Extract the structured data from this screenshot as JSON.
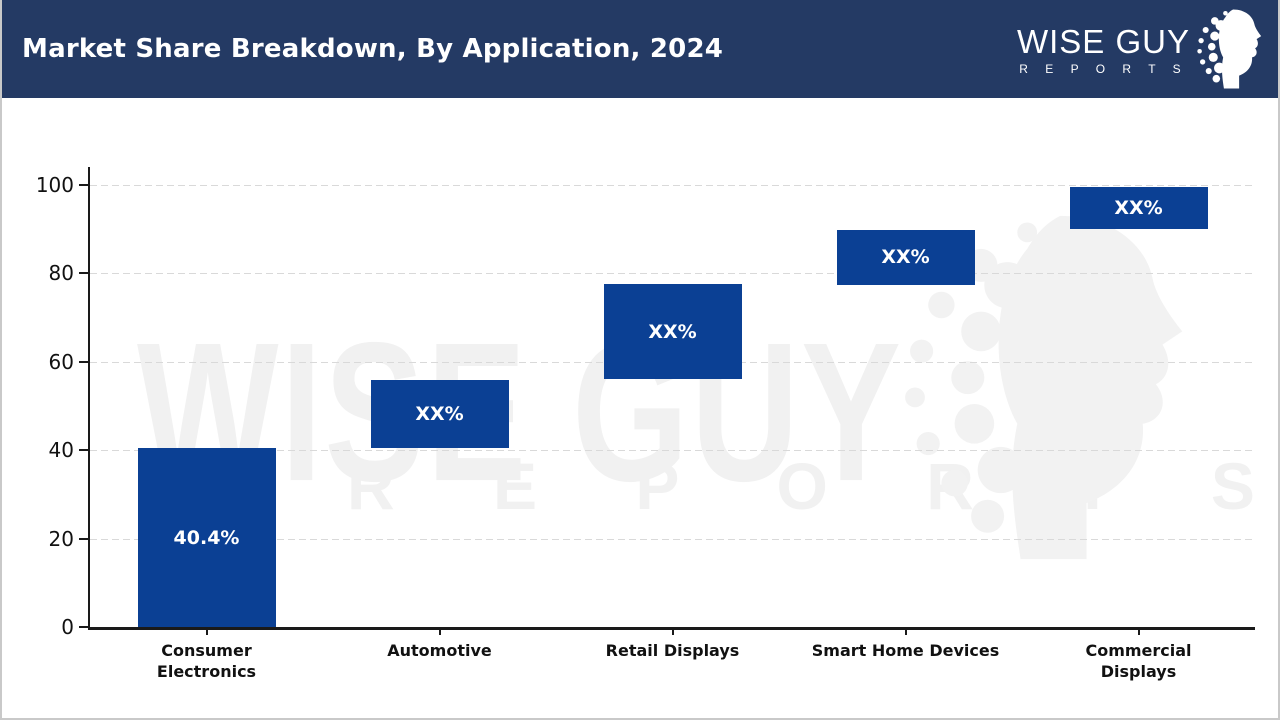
{
  "header": {
    "title": "Market Share Breakdown, By Application, 2024",
    "logo_text": "WISE GUY",
    "logo_subtext": "R E P O R T S"
  },
  "watermark": {
    "text": "WISE GUY",
    "subtext": "R E P O R T S",
    "head_icon": "dotted-face-profile"
  },
  "chart_data": {
    "type": "bar",
    "subtype": "floating_segment_waterfall",
    "title": "Market Share Breakdown, By Application, 2024",
    "categories": [
      "Consumer\nElectronics",
      "Automotive",
      "Retail Displays",
      "Smart Home Devices",
      "Commercial\nDisplays"
    ],
    "bars": [
      {
        "category": "Consumer Electronics",
        "start": 0,
        "end": 40.4,
        "label": "40.4%"
      },
      {
        "category": "Automotive",
        "start": 40.4,
        "end": 55.9,
        "label": "XX%"
      },
      {
        "category": "Retail Displays",
        "start": 56.0,
        "end": 77.6,
        "label": "XX%"
      },
      {
        "category": "Smart Home Devices",
        "start": 77.4,
        "end": 89.9,
        "label": "XX%"
      },
      {
        "category": "Commercial Displays",
        "start": 90.0,
        "end": 99.6,
        "label": "XX%"
      }
    ],
    "xlabel": "",
    "ylabel": "",
    "ylim": [
      0,
      100
    ],
    "yticks": [
      0,
      20,
      40,
      60,
      80,
      100
    ],
    "grid": "horizontal-dashed",
    "legend": "none",
    "colors": {
      "bar": "#0b4094",
      "bar_label": "#ffffff",
      "axis": "#1a1a1a",
      "gridline": "#d9d9d9",
      "header_bg": "#243a64",
      "watermark": "#f1f1f1"
    }
  }
}
